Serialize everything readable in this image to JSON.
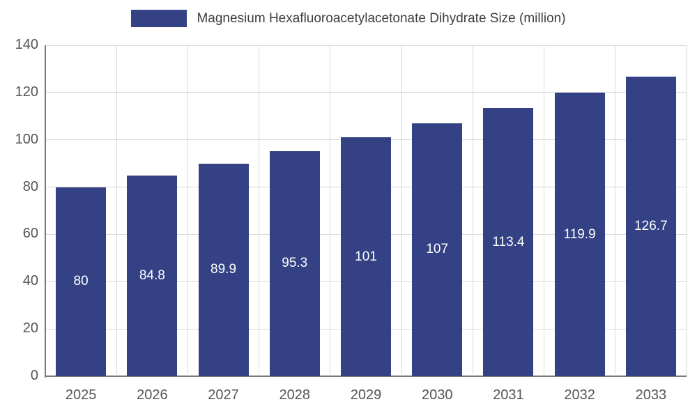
{
  "chart_data": {
    "type": "bar",
    "title": "Magnesium Hexafluoroacetylacetonate Dihydrate Size (million)",
    "categories": [
      "2025",
      "2026",
      "2027",
      "2028",
      "2029",
      "2030",
      "2031",
      "2032",
      "2033"
    ],
    "values": [
      80,
      84.8,
      89.9,
      95.3,
      101,
      107,
      113.4,
      119.9,
      126.7
    ],
    "value_labels": [
      "80",
      "84.8",
      "89.9",
      "95.3",
      "101",
      "107",
      "113.4",
      "119.9",
      "126.7"
    ],
    "xlabel": "",
    "ylabel": "",
    "ylim": [
      0,
      140
    ],
    "yticks": [
      0,
      20,
      40,
      60,
      80,
      100,
      120,
      140
    ],
    "grid": "on",
    "legend_position": "top",
    "colors": {
      "bar": "#344285",
      "grid": "#d9d9d9",
      "spine": "#7a7a7a",
      "tick_text": "#555555",
      "legend_text": "#3d3d3d",
      "value_text": "#ffffff"
    }
  }
}
